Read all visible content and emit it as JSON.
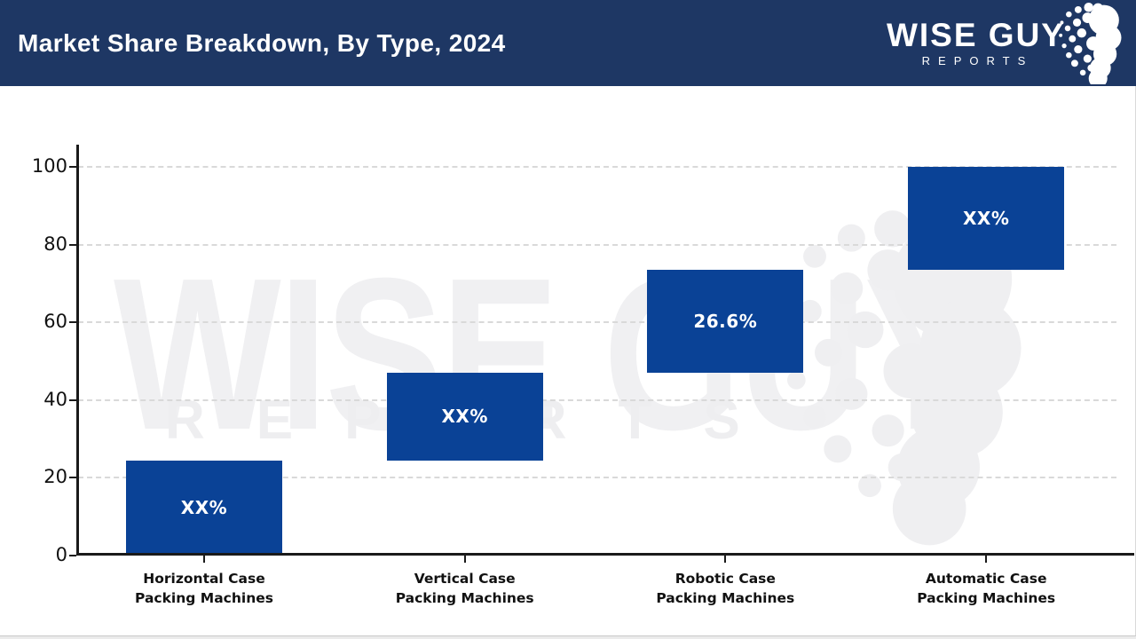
{
  "header": {
    "title": "Market Share Breakdown, By Type, 2024",
    "bg_color": "#1e3764",
    "logo": {
      "brand": "WISE GUY",
      "sub": "REPORTS"
    }
  },
  "watermark": {
    "brand": "WISE GUY",
    "sub": "REPORTS"
  },
  "chart_data": {
    "type": "bar",
    "variant": "floating-waterfall-segments",
    "title": "Market Share Breakdown, By Type, 2024",
    "categories": [
      "Horizontal Case\nPacking Machines",
      "Vertical Case\nPacking Machines",
      "Robotic Case\nPacking Machines",
      "Automatic Case\nPacking Machines"
    ],
    "segments": [
      {
        "start": 0,
        "end": 24.5,
        "label": "XX%"
      },
      {
        "start": 24.5,
        "end": 47.0,
        "label": "XX%"
      },
      {
        "start": 47.0,
        "end": 73.6,
        "label": "26.6%"
      },
      {
        "start": 73.6,
        "end": 100,
        "label": "XX%"
      }
    ],
    "bar_color": "#0a4296",
    "label_color": "#ffffff",
    "ylim": [
      0,
      100
    ],
    "yticks": [
      0,
      20,
      40,
      60,
      80,
      100
    ],
    "grid": "horizontal dashed",
    "grid_color": "#d9d9d9",
    "legend": "none"
  }
}
